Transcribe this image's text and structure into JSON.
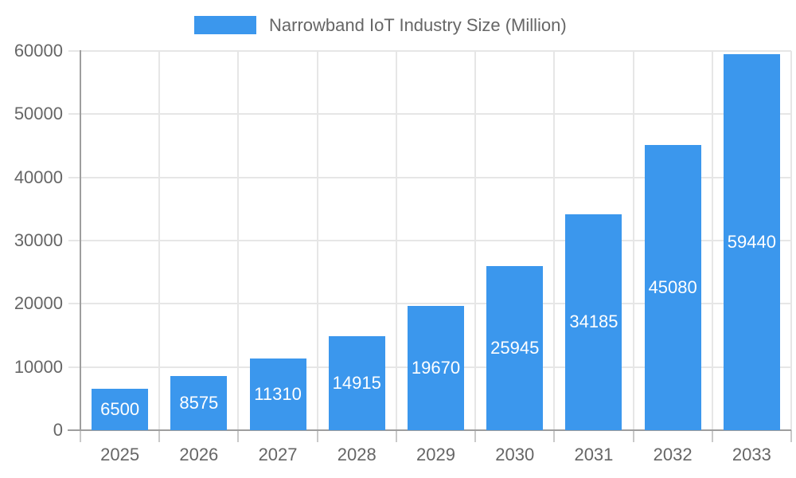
{
  "chart_data": {
    "type": "bar",
    "categories": [
      "2025",
      "2026",
      "2027",
      "2028",
      "2029",
      "2030",
      "2031",
      "2032",
      "2033"
    ],
    "series": [
      {
        "name": "Narrowband IoT Industry Size (Million)",
        "values": [
          6500,
          8575,
          11310,
          14915,
          19670,
          25945,
          34185,
          45080,
          59440
        ]
      }
    ],
    "ylim": [
      0,
      60000
    ],
    "yticks": [
      0,
      10000,
      20000,
      30000,
      40000,
      50000,
      60000
    ],
    "ytick_labels": [
      "0",
      "10000",
      "20000",
      "30000",
      "40000",
      "50000",
      "60000"
    ],
    "grid": true,
    "legend_position": "top",
    "value_label_position": "inside-center",
    "colors": {
      "bar": "#3b97ed",
      "grid": "#e6e6e6",
      "axis": "#9e9e9e",
      "bottom_tick": "#c9c9c9",
      "tick_text": "#666666",
      "value_label": "#ffffff",
      "background": "#ffffff"
    }
  }
}
